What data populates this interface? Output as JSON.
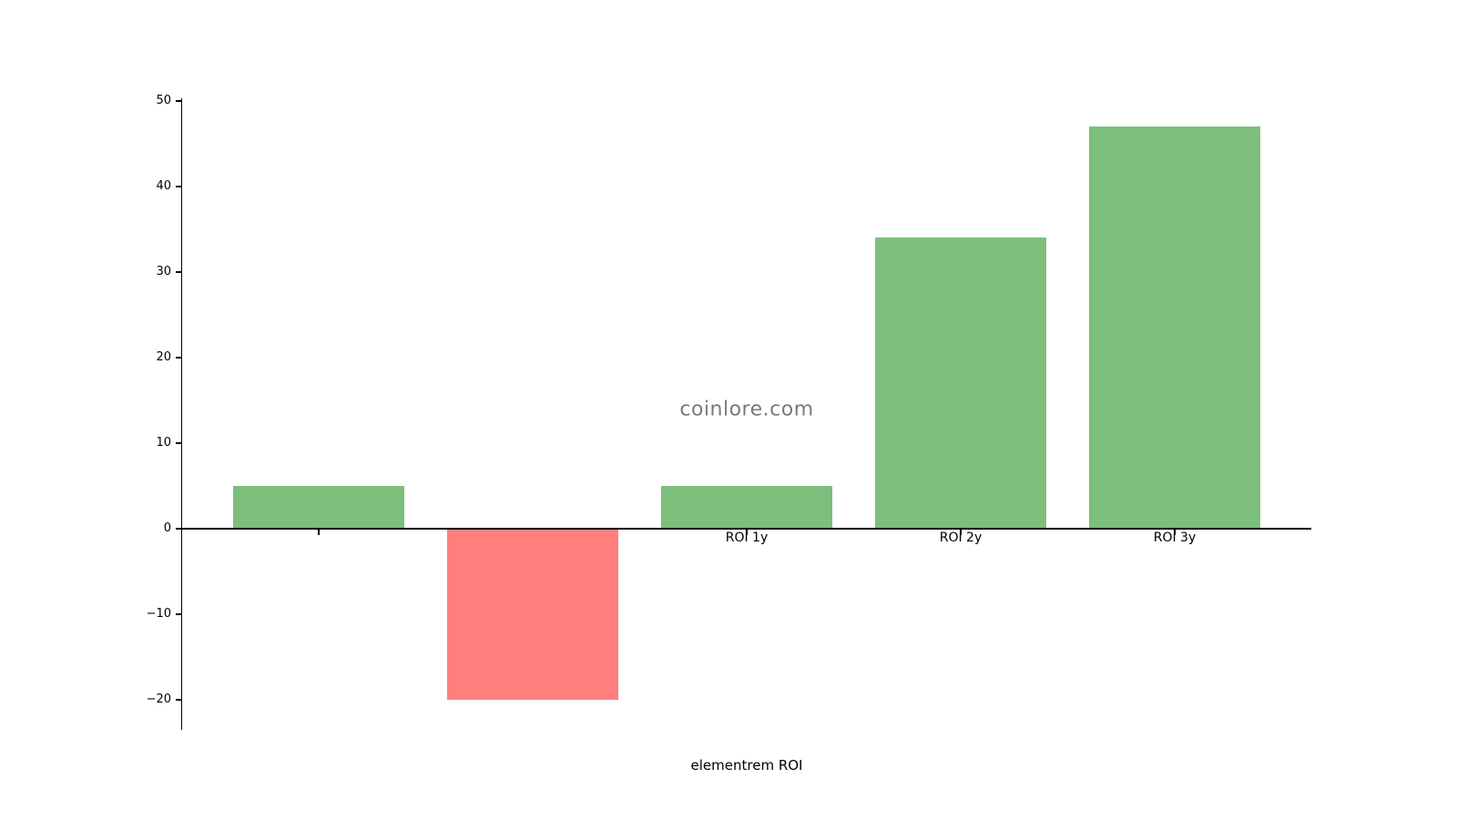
{
  "chart_data": {
    "type": "bar",
    "title": "",
    "xlabel": "elementrem ROI",
    "ylabel": "",
    "watermark": "coinlore.com",
    "categories": [
      "",
      "",
      "ROI 1y",
      "ROI 2y",
      "ROI 3y"
    ],
    "values": [
      5,
      -20,
      5,
      34,
      47
    ],
    "positive_color": "#7dbe7d",
    "negative_color": "#ff7f7f",
    "axis_color": "#000000",
    "watermark_color": "#7a7a7a",
    "y_tick_values": [
      -20,
      -10,
      0,
      10,
      20,
      30,
      40,
      50
    ],
    "y_tick_labels": [
      "−20",
      "−10",
      "0",
      "10",
      "20",
      "30",
      "40",
      "50"
    ],
    "ylim": [
      -23.5,
      50.3
    ],
    "grid": false,
    "legend": "none"
  }
}
